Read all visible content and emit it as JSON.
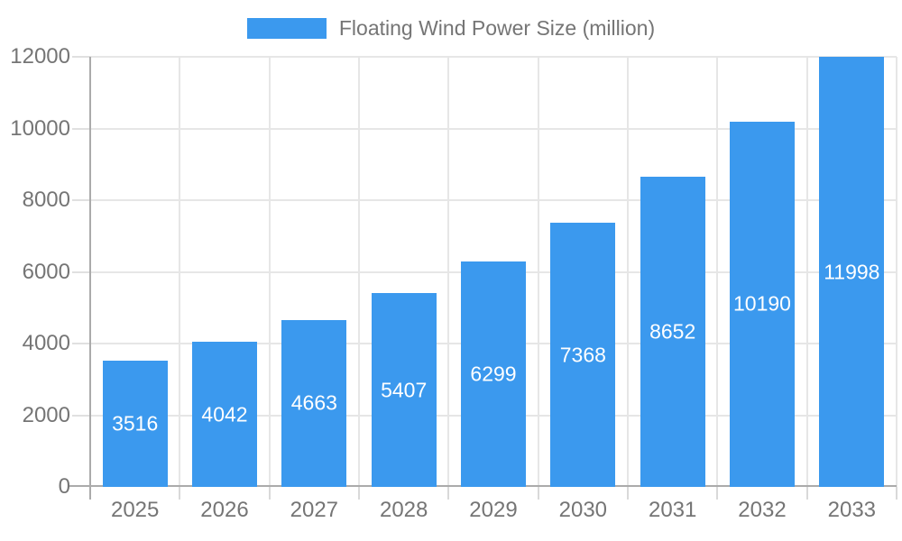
{
  "legend": {
    "label": "Floating Wind Power Size (million)"
  },
  "colors": {
    "bar": "#3b99ee",
    "value_label": "#ffffff",
    "axis_label": "#757575",
    "grid": "#e6e6e6",
    "axis_line": "#ababab"
  },
  "chart_data": {
    "type": "bar",
    "title": "Floating Wind Power Size (million)",
    "categories": [
      "2025",
      "2026",
      "2027",
      "2028",
      "2029",
      "2030",
      "2031",
      "2032",
      "2033"
    ],
    "values": [
      3516,
      4042,
      4663,
      5407,
      6299,
      7368,
      8652,
      10190,
      11998
    ],
    "series_name": "Floating Wind Power Size (million)",
    "xlabel": "",
    "ylabel": "",
    "ylim": [
      0,
      12000
    ],
    "y_ticks": [
      0,
      2000,
      4000,
      6000,
      8000,
      10000,
      12000
    ],
    "grid": true,
    "legend_position": "top",
    "value_labels": "inside-center"
  }
}
